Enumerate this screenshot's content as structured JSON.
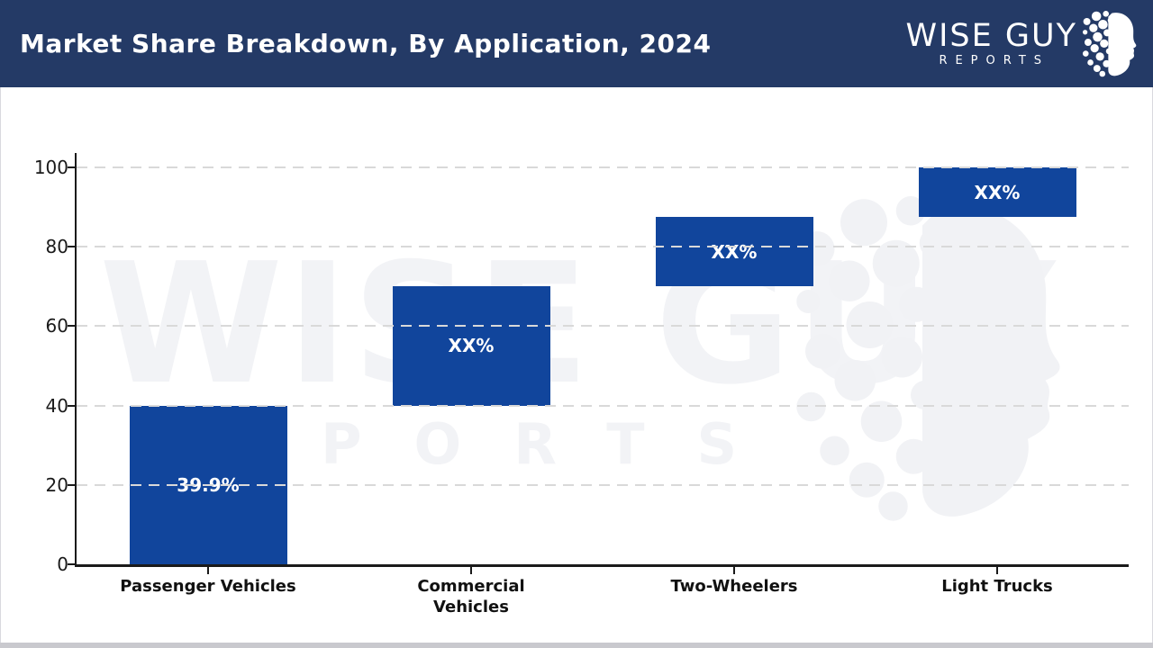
{
  "header": {
    "title": "Market Share Breakdown, By Application, 2024",
    "logo": {
      "line1": "WISE GUY",
      "line2": "REPORTS"
    }
  },
  "watermark": {
    "line1": "WISE GUY",
    "line2": "REPORTS"
  },
  "chart_data": {
    "type": "bar",
    "subtype": "floating-segment-bars",
    "title": "Market Share Breakdown, By Application, 2024",
    "categories": [
      "Passenger Vehicles",
      "Commercial\nVehicles",
      "Two-Wheelers",
      "Light Trucks"
    ],
    "bars": [
      {
        "category": "Passenger Vehicles",
        "start": 0,
        "end": 39.9,
        "label": "39.9%"
      },
      {
        "category": "Commercial Vehicles",
        "start": 40,
        "end": 70,
        "label": "XX%"
      },
      {
        "category": "Two-Wheelers",
        "start": 70,
        "end": 87.5,
        "label": "XX%"
      },
      {
        "category": "Light Trucks",
        "start": 87.5,
        "end": 100,
        "label": "XX%"
      }
    ],
    "xlabel": "",
    "ylabel": "",
    "ylim": [
      0,
      100
    ],
    "yticks": [
      0,
      20,
      40,
      60,
      80,
      100
    ],
    "grid": "horizontal-dashed",
    "legend": "none",
    "colors": {
      "bar": "#11459C",
      "bar_label": "#FFFFFF",
      "grid": "#D9D9D9",
      "axis": "#1A1A1A",
      "header_bg": "#243A66",
      "watermark": "#F2F3F6"
    }
  }
}
